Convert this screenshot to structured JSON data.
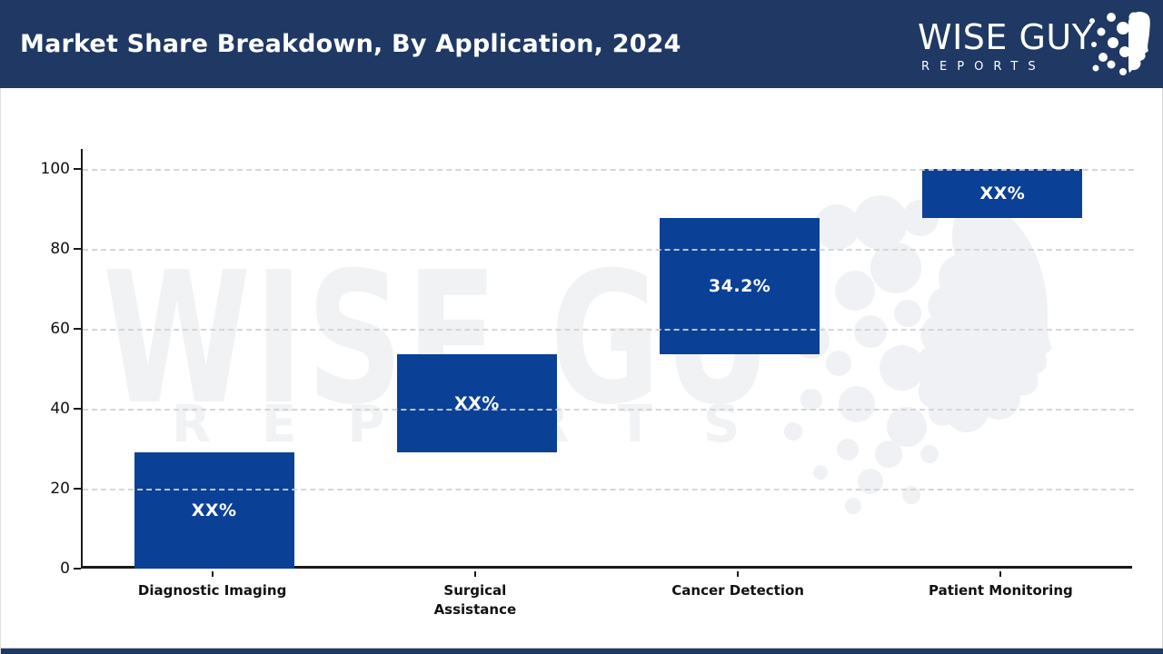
{
  "header": {
    "title": "Market Share Breakdown, By Application, 2024",
    "bg_color": "#1f3864",
    "logo": {
      "wordmark": "WISE GUY",
      "subtext": "REPORTS"
    }
  },
  "watermark": {
    "line1": "WISE GU",
    "line2": "REPORTS"
  },
  "chart_data": {
    "type": "bar",
    "subtype": "waterfall-floating-segments",
    "title": "Market Share Breakdown, By Application, 2024",
    "categories": [
      "Diagnostic Imaging",
      "Surgical\nAssistance",
      "Cancer Detection",
      "Patient Monitoring"
    ],
    "segments": [
      {
        "category": "Diagnostic Imaging",
        "start": 0,
        "end": 29.1,
        "value": 29.1,
        "label": "XX%"
      },
      {
        "category": "Surgical Assistance",
        "start": 29.1,
        "end": 53.6,
        "value": 24.5,
        "label": "XX%"
      },
      {
        "category": "Cancer Detection",
        "start": 53.6,
        "end": 87.8,
        "value": 34.2,
        "label": "34.2%"
      },
      {
        "category": "Patient Monitoring",
        "start": 87.8,
        "end": 100,
        "value": 12.2,
        "label": "XX%"
      }
    ],
    "yticks": [
      0,
      20,
      40,
      60,
      80,
      100
    ],
    "ylim": [
      0,
      105
    ],
    "grid": "horizontal dashed over bars",
    "bar_color": "#0b4097",
    "value_label_color": "#ffffff",
    "axis_color": "#1a1a1a",
    "legend": "none"
  }
}
